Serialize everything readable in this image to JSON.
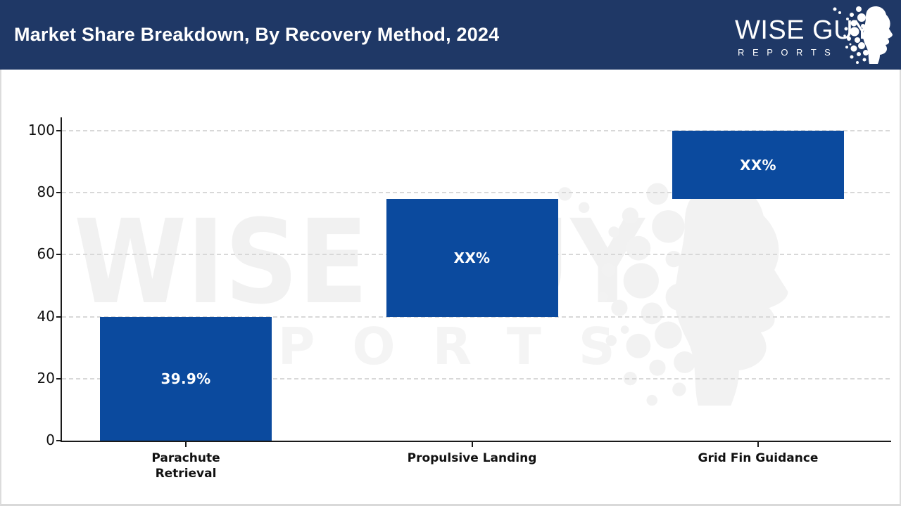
{
  "header": {
    "title": "Market Share Breakdown, By Recovery Method, 2024",
    "brand": {
      "line1": "WISE GUY",
      "line2": "R E P O R T S"
    }
  },
  "watermark": {
    "line1": "WISE GUY",
    "line2": "REPORTS"
  },
  "colors": {
    "header_bg": "#1f3866",
    "bar": "#0b4a9e",
    "axis": "#1a1a1a",
    "grid": "#d8d8d8",
    "value_text": "#ffffff",
    "watermark": "#f1f1f1",
    "title_text": "#ffffff"
  },
  "chart_data": {
    "type": "bar",
    "subtype": "stacked-waterfall-percent",
    "title": "Market Share Breakdown, By Recovery Method, 2024",
    "xlabel": "",
    "ylabel": "",
    "ylim": [
      0,
      105
    ],
    "yticks": [
      0,
      20,
      40,
      60,
      80,
      100
    ],
    "grid": "horizontal-dashed",
    "legend": "none",
    "bar_color": "#0b4a9e",
    "categories": [
      "Parachute\nRetrieval",
      "Propulsive Landing",
      "Grid Fin Guidance"
    ],
    "segments": [
      {
        "category": "Parachute Retrieval",
        "start": 0,
        "end": 39.9,
        "value_label": "39.9%"
      },
      {
        "category": "Propulsive Landing",
        "start": 39.9,
        "end": 78,
        "value_label": "XX%"
      },
      {
        "category": "Grid Fin Guidance",
        "start": 78,
        "end": 100,
        "value_label": "XX%"
      }
    ]
  }
}
